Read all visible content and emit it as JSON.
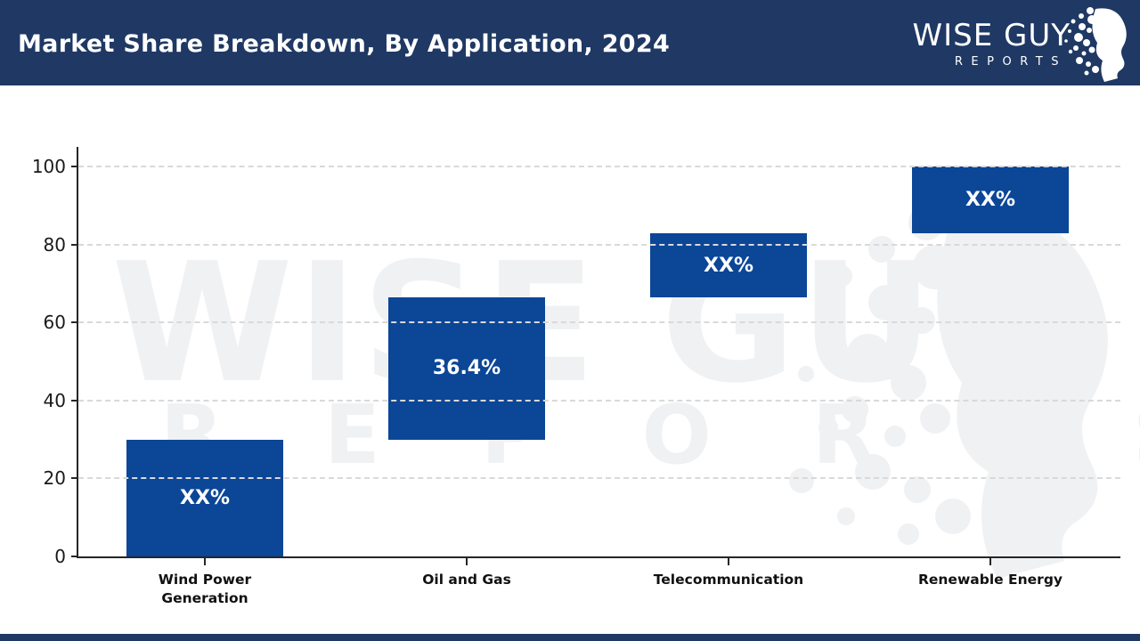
{
  "header": {
    "title": "Market Share Breakdown, By Application, 2024",
    "bg_color": "#1f3864",
    "logo": {
      "line1": "WISE GUY",
      "line2": "REPORTS"
    }
  },
  "watermark": {
    "line1": "WISE GUY",
    "line2": "REPORTS"
  },
  "chart_data": {
    "type": "bar",
    "subtype": "floating-waterfall",
    "title": "Market Share Breakdown, By Application, 2024",
    "categories": [
      "Wind Power Generation",
      "Oil and Gas",
      "Telecommunication",
      "Renewable Energy"
    ],
    "segments": [
      {
        "category": "Wind Power Generation",
        "start": 0,
        "end": 30,
        "label": "XX%"
      },
      {
        "category": "Oil and Gas",
        "start": 30,
        "end": 66.4,
        "label": "36.4%"
      },
      {
        "category": "Telecommunication",
        "start": 66.4,
        "end": 82.9,
        "label": "XX%"
      },
      {
        "category": "Renewable Energy",
        "start": 82.9,
        "end": 100,
        "label": "XX%"
      }
    ],
    "only_explicit_value": "36.4%",
    "xlabel": "",
    "ylabel": "",
    "yticks": [
      0,
      20,
      40,
      60,
      80,
      100
    ],
    "ylim": [
      0,
      105
    ],
    "grid": "horizontal-dashed",
    "legend": "none",
    "bar_color": "#0b4697",
    "bar_label_color": "#ffffff",
    "grid_color": "#d9d9d9",
    "axis_color": "#262626"
  }
}
